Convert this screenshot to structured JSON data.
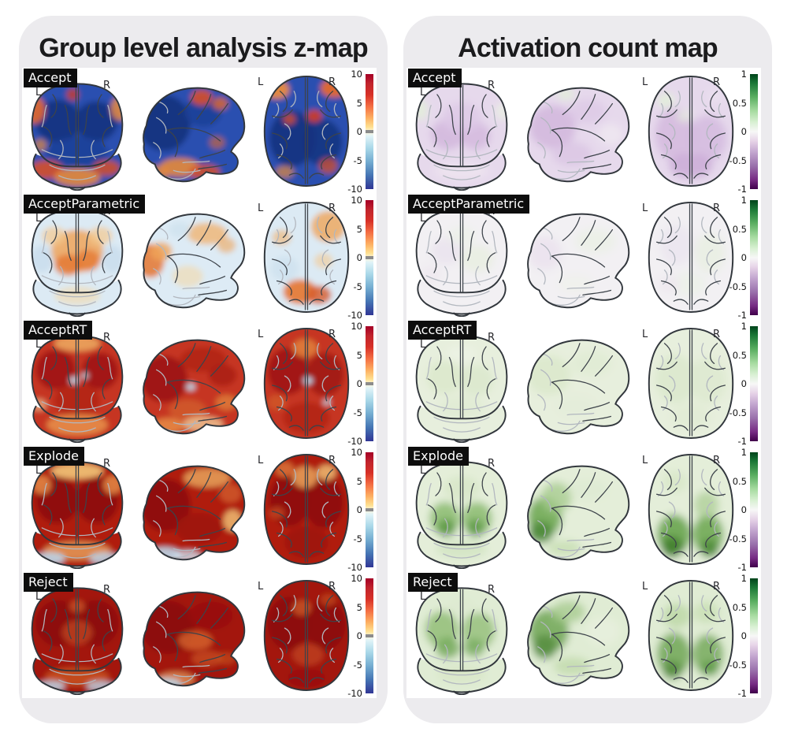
{
  "page": {
    "background": "#ffffff",
    "panel_background": "#ECEBEE",
    "label_background": "#0d0d0d",
    "label_text_color": "#ffffff"
  },
  "panels": [
    {
      "id": "zmap",
      "title": "Group level analysis z-map",
      "rows": [
        {
          "condition": "Accept",
          "left": "L",
          "right": "R",
          "pattern": "z_accept"
        },
        {
          "condition": "AcceptParametric",
          "left": "L",
          "right": "R",
          "pattern": "z_acceptparam"
        },
        {
          "condition": "AcceptRT",
          "left": "L",
          "right": "R",
          "pattern": "z_acceptrt"
        },
        {
          "condition": "Explode",
          "left": "L",
          "right": "R",
          "pattern": "z_explode"
        },
        {
          "condition": "Reject",
          "left": "L",
          "right": "R",
          "pattern": "z_reject"
        }
      ],
      "colorbar": {
        "ticks": [
          "10",
          "5",
          "0",
          "-5",
          "-10"
        ],
        "range": [
          -10,
          10
        ],
        "colormap": "RdYlBu_r",
        "zero_marker": true,
        "zero_marker_color": "#8c8c8c",
        "gradient": [
          [
            "0%",
            "#a50026"
          ],
          [
            "8%",
            "#c0232c"
          ],
          [
            "18%",
            "#d73027"
          ],
          [
            "28%",
            "#f46d43"
          ],
          [
            "38%",
            "#fdae61"
          ],
          [
            "46%",
            "#fee090"
          ],
          [
            "50%",
            "#fdf6d9"
          ],
          [
            "54%",
            "#e0f3f8"
          ],
          [
            "64%",
            "#abd9e9"
          ],
          [
            "76%",
            "#74add1"
          ],
          [
            "88%",
            "#4575b4"
          ],
          [
            "100%",
            "#313695"
          ]
        ]
      }
    },
    {
      "id": "count",
      "title": "Activation count map",
      "rows": [
        {
          "condition": "Accept",
          "left": "L",
          "right": "R",
          "pattern": "c_accept"
        },
        {
          "condition": "AcceptParametric",
          "left": "L",
          "right": "R",
          "pattern": "c_acceptparam"
        },
        {
          "condition": "AcceptRT",
          "left": "L",
          "right": "R",
          "pattern": "c_acceptrt"
        },
        {
          "condition": "Explode",
          "left": "L",
          "right": "R",
          "pattern": "c_explode"
        },
        {
          "condition": "Reject",
          "left": "L",
          "right": "R",
          "pattern": "c_reject"
        }
      ],
      "colorbar": {
        "ticks": [
          "1",
          "0.5",
          "0",
          "-0.5",
          "-1"
        ],
        "range": [
          -1,
          1
        ],
        "colormap": "PRGn",
        "zero_marker": false,
        "gradient": [
          [
            "0%",
            "#00441b"
          ],
          [
            "8%",
            "#1b7837"
          ],
          [
            "20%",
            "#5aae61"
          ],
          [
            "32%",
            "#a6dba0"
          ],
          [
            "42%",
            "#d9f0d3"
          ],
          [
            "50%",
            "#f7f7f7"
          ],
          [
            "58%",
            "#e7d4e8"
          ],
          [
            "68%",
            "#c2a5cf"
          ],
          [
            "80%",
            "#9970ab"
          ],
          [
            "92%",
            "#762a83"
          ],
          [
            "100%",
            "#40004b"
          ]
        ]
      }
    }
  ],
  "chart_data": [
    {
      "type": "heatmap",
      "title": "Group level analysis z-map",
      "rows": [
        "Accept",
        "AcceptParametric",
        "AcceptRT",
        "Explode",
        "Reject"
      ],
      "views": [
        "coronal",
        "sagittal",
        "axial"
      ],
      "hemisphere_labels": [
        "L",
        "R"
      ],
      "colorbar": {
        "range": [
          -10,
          10
        ],
        "ticks": [
          10,
          5,
          0,
          -5,
          -10
        ],
        "colormap": "RdYlBu_r",
        "zero_marker": true
      },
      "row_summaries": {
        "Accept": "Predominantly strong negative z-values (deep blue) across cortex, with positive (orange/red) clusters at dorsolateral prefrontal edges, occipital/cerebellar base and scattered midline spots.",
        "AcceptParametric": "Weak mixed map: faint negative (pale blue) background with mild positive (orange) clusters in medial/central regions and posterior midline.",
        "AcceptRT": "Widespread strong positive z-values (red/dark red) over nearly all cortex, pale orange at vertex and a few small negative (light blue) specks.",
        "Explode": "Very strong widespread positive z-values (dark red), cream/orange at the superior edge and mild negative (light blue) at the cerebellar base.",
        "Reject": "Near-saturated strong positive z-values (dark red) across the whole brain, slight light-blue at the inferior cerebellar edge."
      }
    },
    {
      "type": "heatmap",
      "title": "Activation count map",
      "rows": [
        "Accept",
        "AcceptParametric",
        "AcceptRT",
        "Explode",
        "Reject"
      ],
      "views": [
        "coronal",
        "sagittal",
        "axial"
      ],
      "hemisphere_labels": [
        "L",
        "R"
      ],
      "colorbar": {
        "range": [
          -1,
          1
        ],
        "ticks": [
          1,
          0.5,
          0,
          -0.5,
          -1
        ],
        "colormap": "PRGn",
        "zero_marker": false
      },
      "row_summaries": {
        "Accept": "Diffuse mild negative counts (light purple) across cortex with faint green at superior/lateral edges.",
        "AcceptParametric": "Counts near zero: almost white map with very faint green and purple tinges.",
        "AcceptRT": "Diffuse mild positive counts (pale green) across the whole brain.",
        "Explode": "Moderate positive counts (green), strongest bilaterally in occipito-parietal and deep central regions.",
        "Reject": "Moderate positive counts (green), broadly distributed and strongest in parietal/occipital cortex."
      }
    }
  ]
}
